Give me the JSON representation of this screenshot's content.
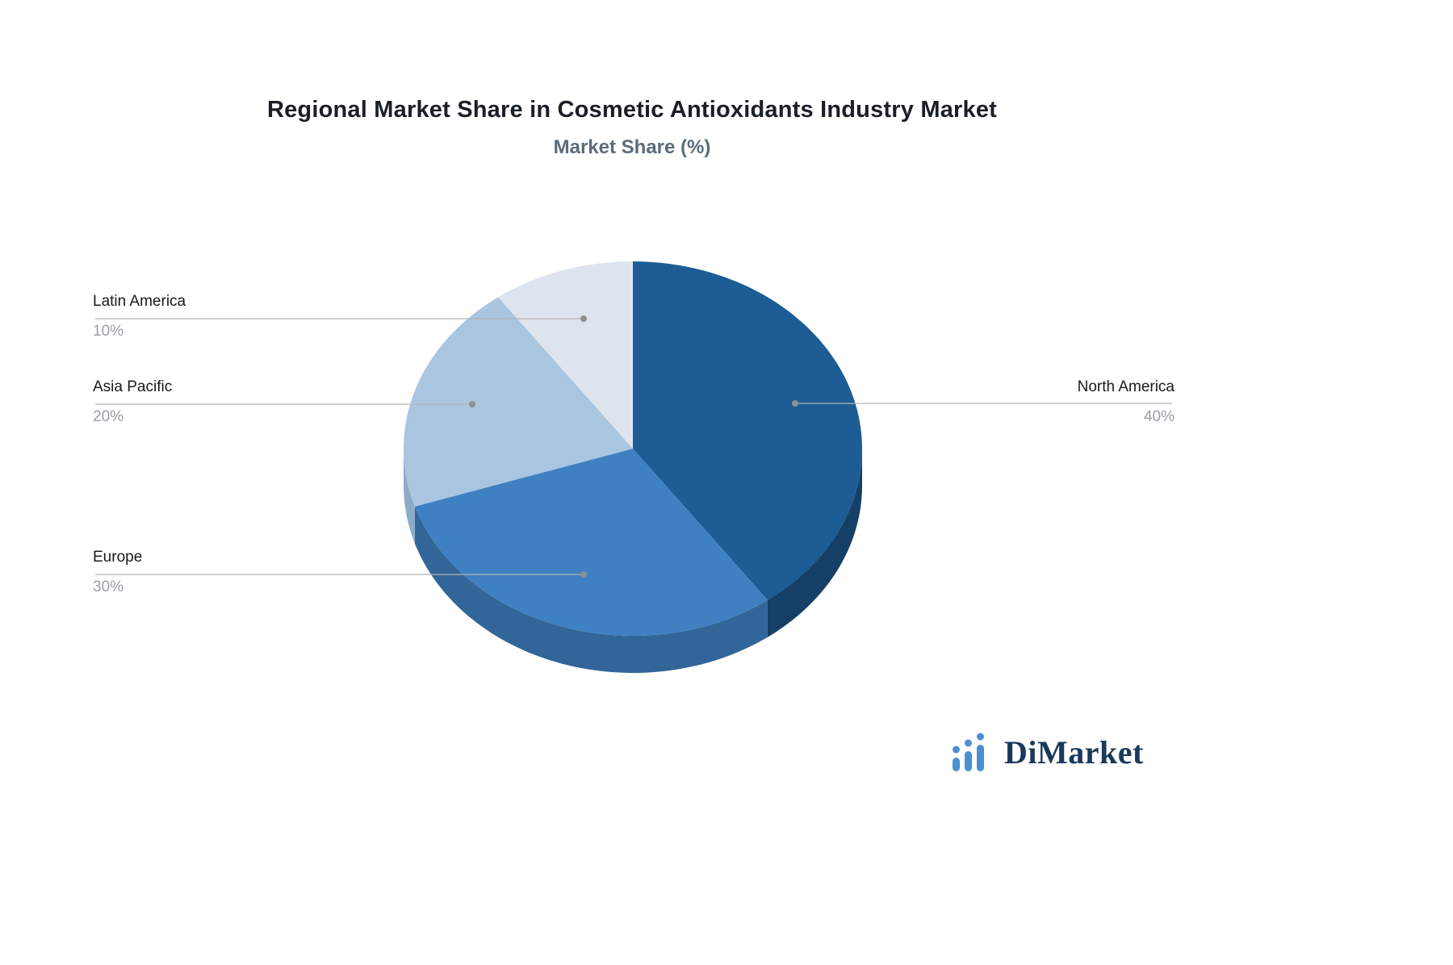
{
  "chart_data": {
    "type": "pie",
    "title": "Regional Market Share in Cosmetic Antioxidants Industry Market",
    "subtitle": "Market Share (%)",
    "categories": [
      "North America",
      "Europe",
      "Asia Pacific",
      "Latin America"
    ],
    "values": [
      40,
      30,
      20,
      10
    ],
    "value_labels": [
      "40%",
      "30%",
      "20%",
      "10%"
    ],
    "colors": [
      "#1d5c94",
      "#3f80c3",
      "#a9c5e0",
      "#dee4ee"
    ],
    "side_colors": [
      "#153f66",
      "#326699",
      "#8cabc9",
      "#c2ccda"
    ],
    "start_angle": 0,
    "direction": "clockwise",
    "effect_3d": true,
    "legend_position": "callout-labels",
    "leader_line_color": "#b4b4b4",
    "leader_dot_color": "#8f8f8f"
  },
  "logo": {
    "text": "DiMarket",
    "icon": "bar-chart-logo-icon",
    "icon_color": "#4b8fd4",
    "text_color": "#1a3a5c"
  }
}
